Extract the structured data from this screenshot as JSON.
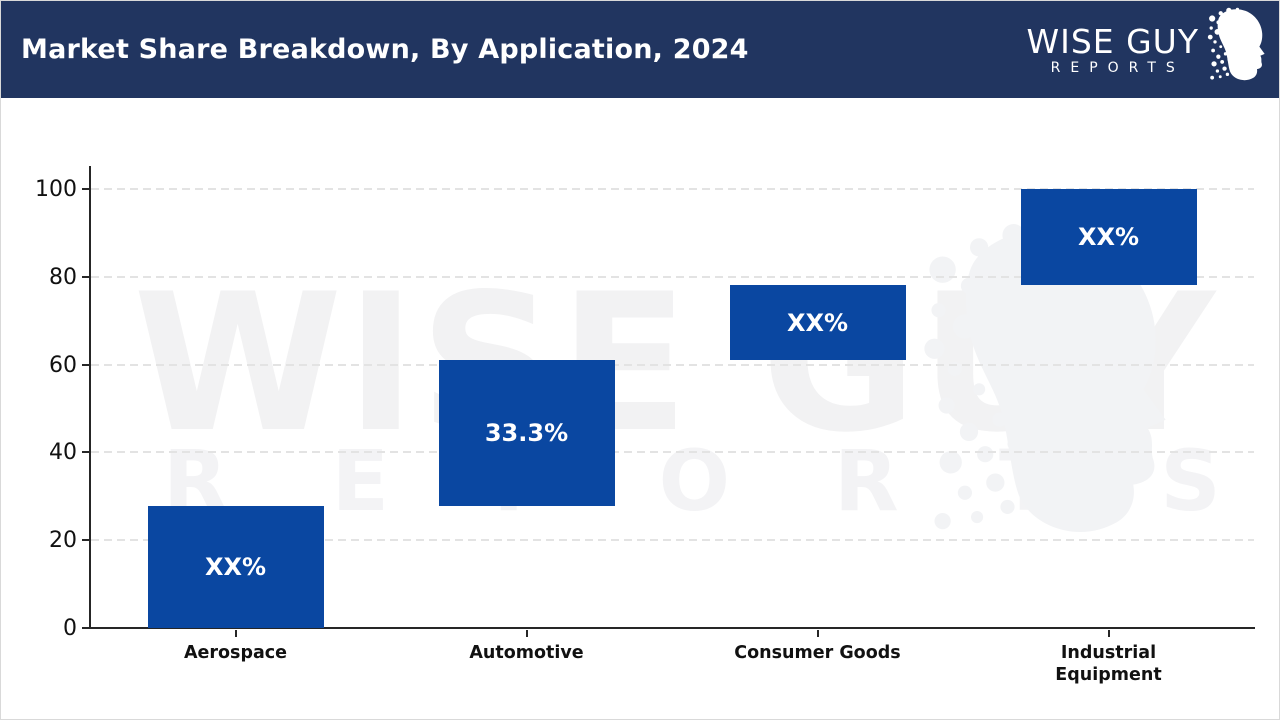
{
  "header": {
    "title": "Market Share Breakdown, By Application, 2024",
    "logo": {
      "line1": "WISE GUY",
      "line2": "REPORTS"
    }
  },
  "watermark": {
    "line1": "WISE GUY",
    "line2": "REPORTS"
  },
  "colors": {
    "header_bg": "#213560",
    "bar": "#0a47a1",
    "grid": "#e3e3e3",
    "axis": "#262626",
    "watermark_text": "#f2f2f3",
    "watermark_face": "#f2f3f5",
    "title_text": "#ffffff",
    "bar_label_text": "#ffffff"
  },
  "chart_data": {
    "type": "bar",
    "subtype": "waterfall-floating-bars",
    "title": "Market Share Breakdown, By Application, 2024",
    "categories": [
      "Aerospace",
      "Automotive",
      "Consumer Goods",
      "Industrial Equipment"
    ],
    "segments": [
      {
        "category": "Aerospace",
        "start": 0.0,
        "end": 27.7,
        "value": 27.7,
        "label": "XX%"
      },
      {
        "category": "Automotive",
        "start": 27.7,
        "end": 61.0,
        "value": 33.3,
        "label": "33.3%"
      },
      {
        "category": "Consumer Goods",
        "start": 61.0,
        "end": 78.1,
        "value": 17.1,
        "label": "XX%"
      },
      {
        "category": "Industrial Equipment",
        "start": 78.1,
        "end": 100.0,
        "value": 21.9,
        "label": "XX%"
      }
    ],
    "y_ticks": [
      0,
      20,
      40,
      60,
      80,
      100
    ],
    "ylim": [
      0,
      105
    ],
    "xlabel": "",
    "ylabel": "",
    "grid": "horizontal-dashed",
    "legend": null
  }
}
